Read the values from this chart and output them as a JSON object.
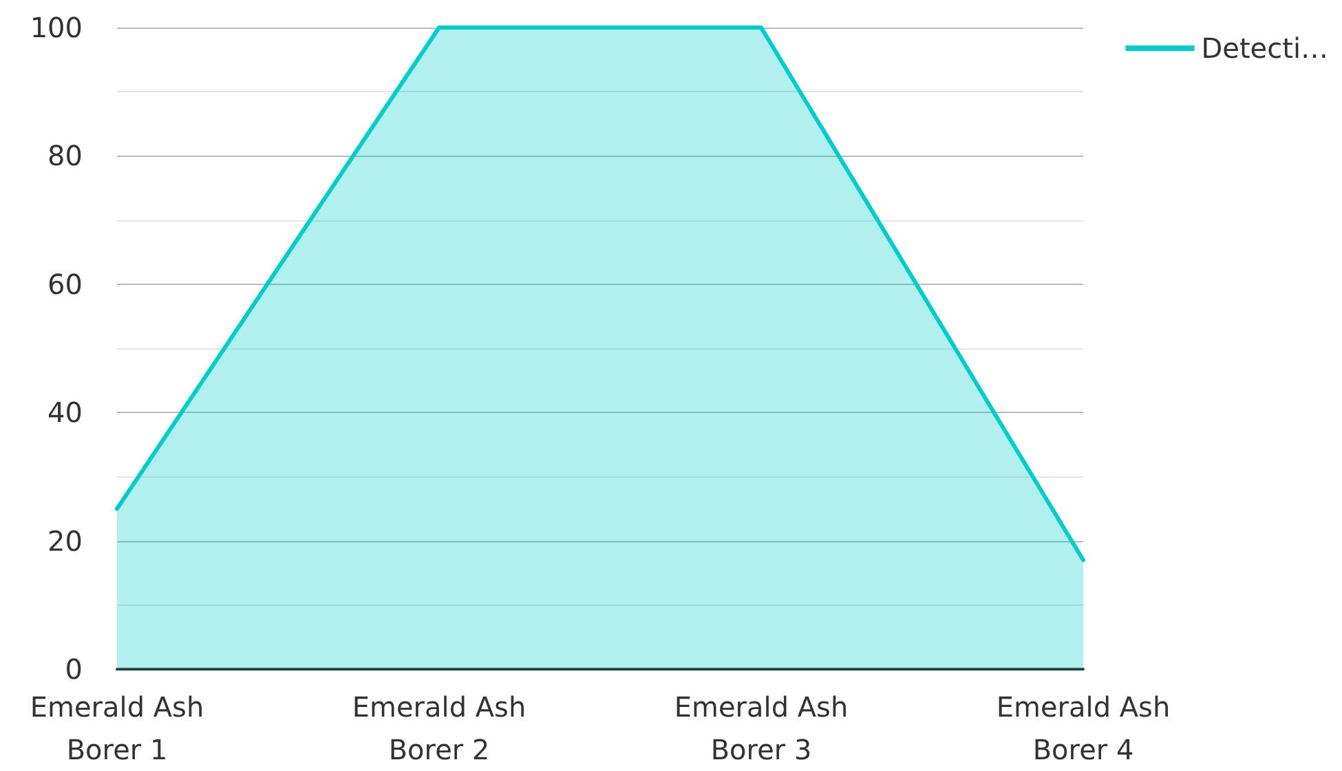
{
  "chart_data": {
    "type": "area",
    "categories": [
      "Emerald Ash\nBorer 1",
      "Emerald Ash\nBorer 2",
      "Emerald Ash\nBorer 3",
      "Emerald Ash\nBorer 4"
    ],
    "series": [
      {
        "name": "Detecti…",
        "color": "#00cccc",
        "values": [
          25,
          100,
          100,
          17
        ]
      }
    ],
    "ylim": [
      0,
      100
    ],
    "yticks": [
      0,
      20,
      40,
      60,
      80,
      100
    ],
    "grid": "y",
    "legend": "top right",
    "marker": "none",
    "line_style": "solid"
  }
}
